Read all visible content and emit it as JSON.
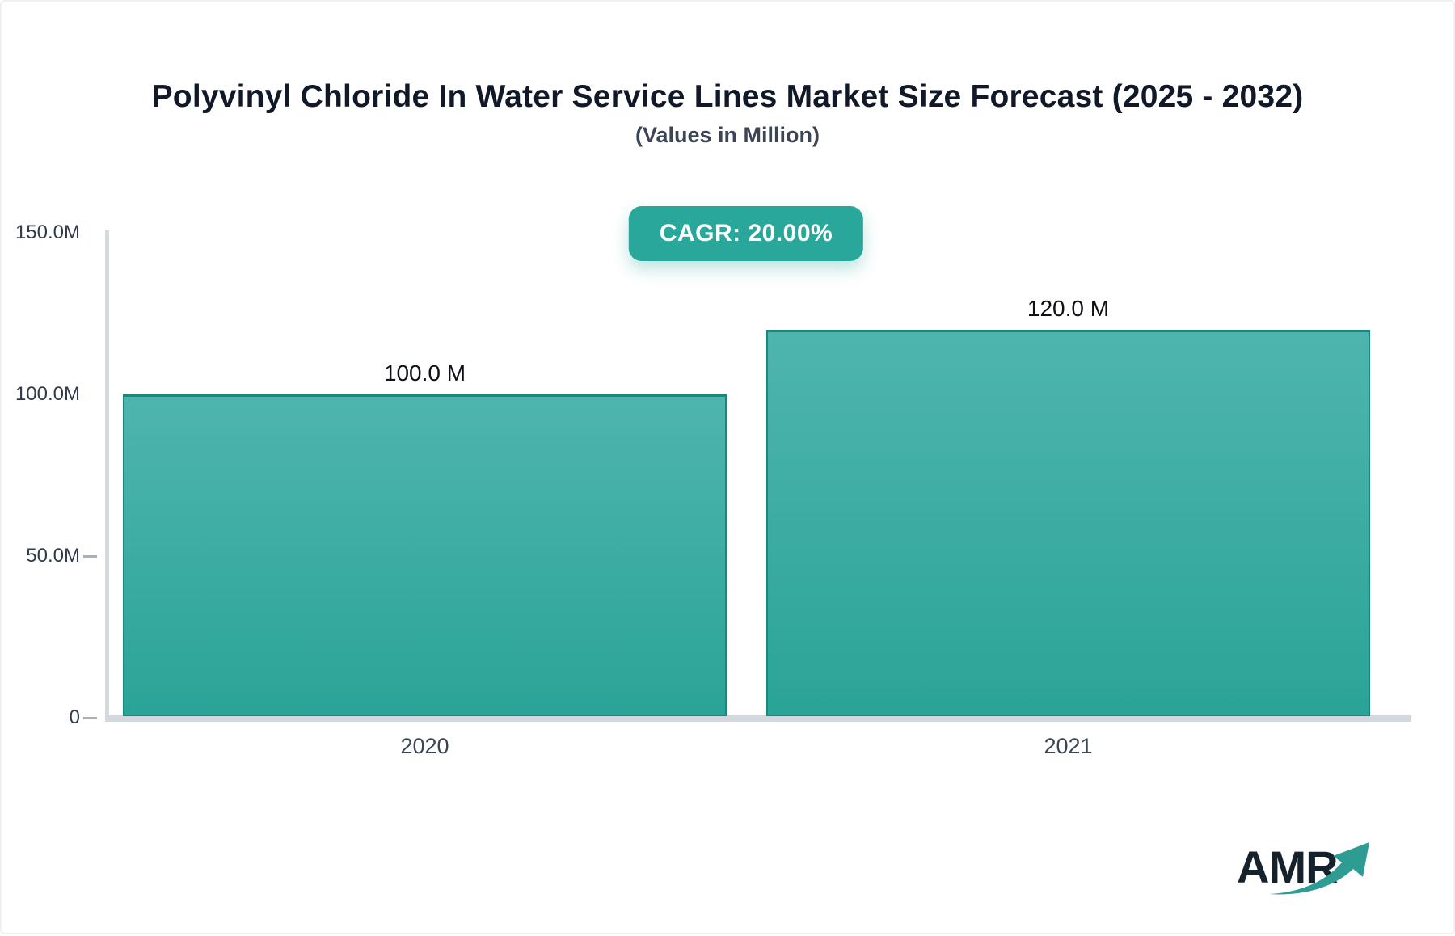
{
  "header": {
    "title": "Polyvinyl Chloride In Water Service Lines Market Size Forecast (2025 - 2032)",
    "subtitle": "(Values in Million)",
    "cagr_label": "CAGR: 20.00%"
  },
  "logo": {
    "text": "AMR"
  },
  "colors": {
    "accent_teal": "#2AA79B",
    "bar_gradient_top": "#4FB5AC",
    "bar_gradient_bottom": "#2AA497",
    "bar_border": "#1B8781",
    "axis_gray": "#D5D9E0",
    "title_text": "#111827",
    "subtitle_text": "#3C4555",
    "logo_text": "#15222C",
    "logo_arrow": "#2E9C92"
  },
  "chart_data": {
    "type": "bar",
    "title": "Polyvinyl Chloride In Water Service Lines Market Size Forecast (2025 - 2032)",
    "subtitle": "(Values in Million)",
    "unit": "Million",
    "cagr_percent": 20.0,
    "categories": [
      "2020",
      "2021"
    ],
    "values": [
      100.0,
      120.0
    ],
    "bar_value_labels": [
      "100.0 M",
      "120.0 M"
    ],
    "xlabel": "",
    "ylabel": "",
    "ylim": [
      0,
      150
    ],
    "y_axis_ticks": [
      {
        "label": "150.0M",
        "value": 150,
        "dash": false
      },
      {
        "label": "100.0M",
        "value": 100,
        "dash": false
      },
      {
        "label": "50.0M",
        "value": 50,
        "dash": true
      },
      {
        "label": "0",
        "value": 0,
        "dash": true
      }
    ],
    "grid": false,
    "legend_position": "none"
  }
}
